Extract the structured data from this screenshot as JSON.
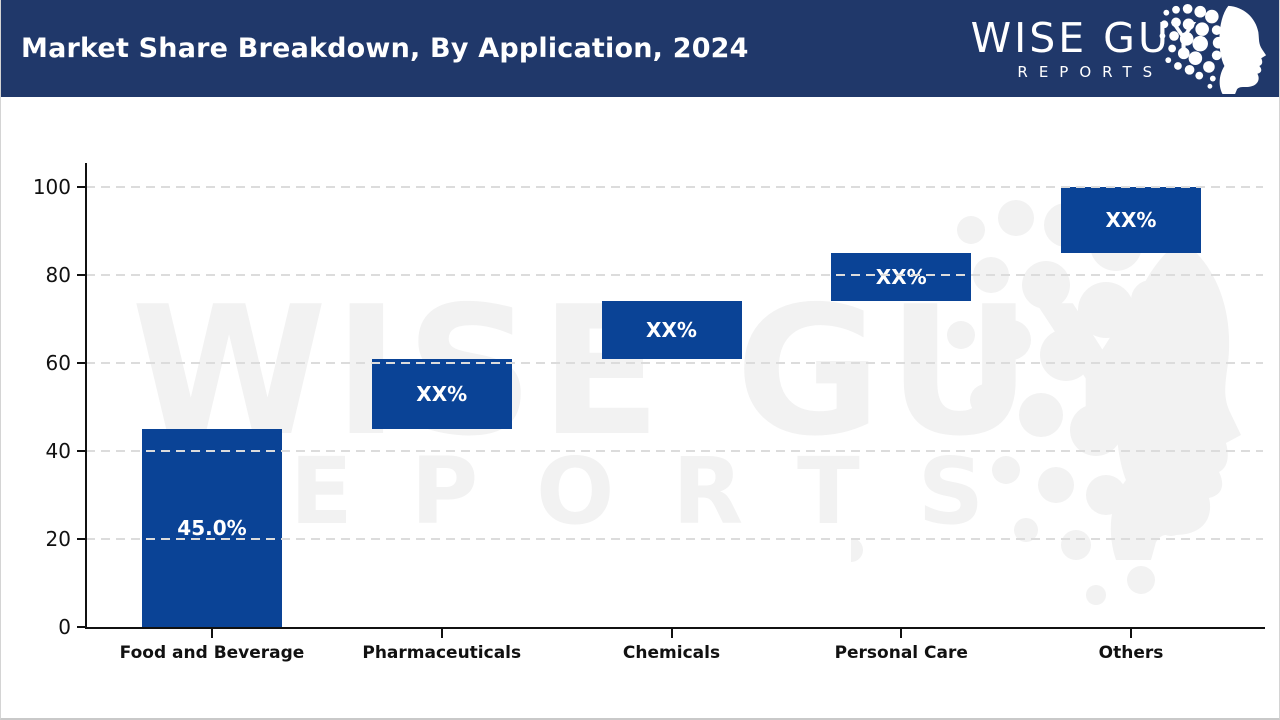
{
  "header": {
    "title": "Market Share Breakdown, By Application, 2024",
    "logo": {
      "line1": "WISE GUY",
      "line2": "REPORTS"
    }
  },
  "watermark": {
    "line1": "WISE GUY",
    "line2": "REPORTS"
  },
  "chart_data": {
    "type": "bar",
    "subtype": "waterfall",
    "title": "Market Share Breakdown, By Application, 2024",
    "categories": [
      "Food and Beverage",
      "Pharmaceuticals",
      "Chemicals",
      "Personal Care",
      "Others"
    ],
    "segments": [
      {
        "category": "Food and Beverage",
        "start": 0,
        "end": 45,
        "label": "45.0%"
      },
      {
        "category": "Pharmaceuticals",
        "start": 45,
        "end": 61,
        "label": "XX%"
      },
      {
        "category": "Chemicals",
        "start": 61,
        "end": 74,
        "label": "XX%"
      },
      {
        "category": "Personal Care",
        "start": 74,
        "end": 85,
        "label": "XX%"
      },
      {
        "category": "Others",
        "start": 85,
        "end": 100,
        "label": "XX%"
      }
    ],
    "ylim": [
      0,
      100
    ],
    "yticks": [
      0,
      20,
      40,
      60,
      80,
      100
    ],
    "xlabel": "",
    "ylabel": "",
    "grid": "horizontal-dashed-over-bars",
    "legend": "none",
    "bar_color": "#0a4396",
    "bar_label_color": "#ffffff",
    "axis_color": "#111111",
    "grid_color": "#dcdcdc",
    "header_bg_color": "#20386a",
    "watermark_color": "#f2f2f2"
  }
}
